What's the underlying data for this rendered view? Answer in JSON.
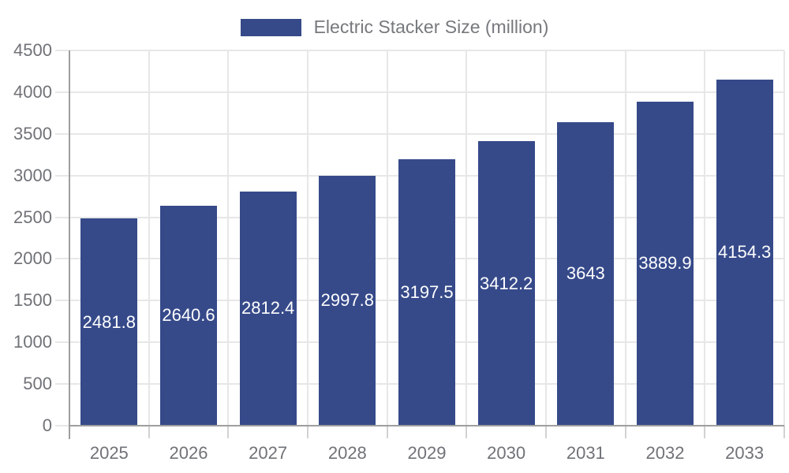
{
  "chart_data": {
    "type": "bar",
    "title": "",
    "xlabel": "",
    "ylabel": "",
    "legend_label": "Electric Stacker Size (million)",
    "legend_position": "top",
    "grid": true,
    "categories": [
      "2025",
      "2026",
      "2027",
      "2028",
      "2029",
      "2030",
      "2031",
      "2032",
      "2033"
    ],
    "series": [
      {
        "name": "Electric Stacker Size (million)",
        "values": [
          2481.8,
          2640.6,
          2812.4,
          2997.8,
          3197.5,
          3412.2,
          3643,
          3889.9,
          4154.3
        ]
      }
    ],
    "value_labels": [
      "2481.8",
      "2640.6",
      "2812.4",
      "2997.8",
      "3197.5",
      "3412.2",
      "3643",
      "3889.9",
      "4154.3"
    ],
    "ylim": [
      0,
      4500
    ],
    "yticks": [
      0,
      500,
      1000,
      1500,
      2000,
      2500,
      3000,
      3500,
      4000,
      4500
    ],
    "colors": {
      "bar": "#364a8a",
      "bar_value_text": "#ffffff",
      "gridline": "#e7e7e7",
      "axis_line": "#9e9e9e",
      "boundary_tick": "#d2d2d2",
      "axis_text": "#6f7277",
      "legend_text": "#76797d",
      "background": "#ffffff"
    }
  }
}
